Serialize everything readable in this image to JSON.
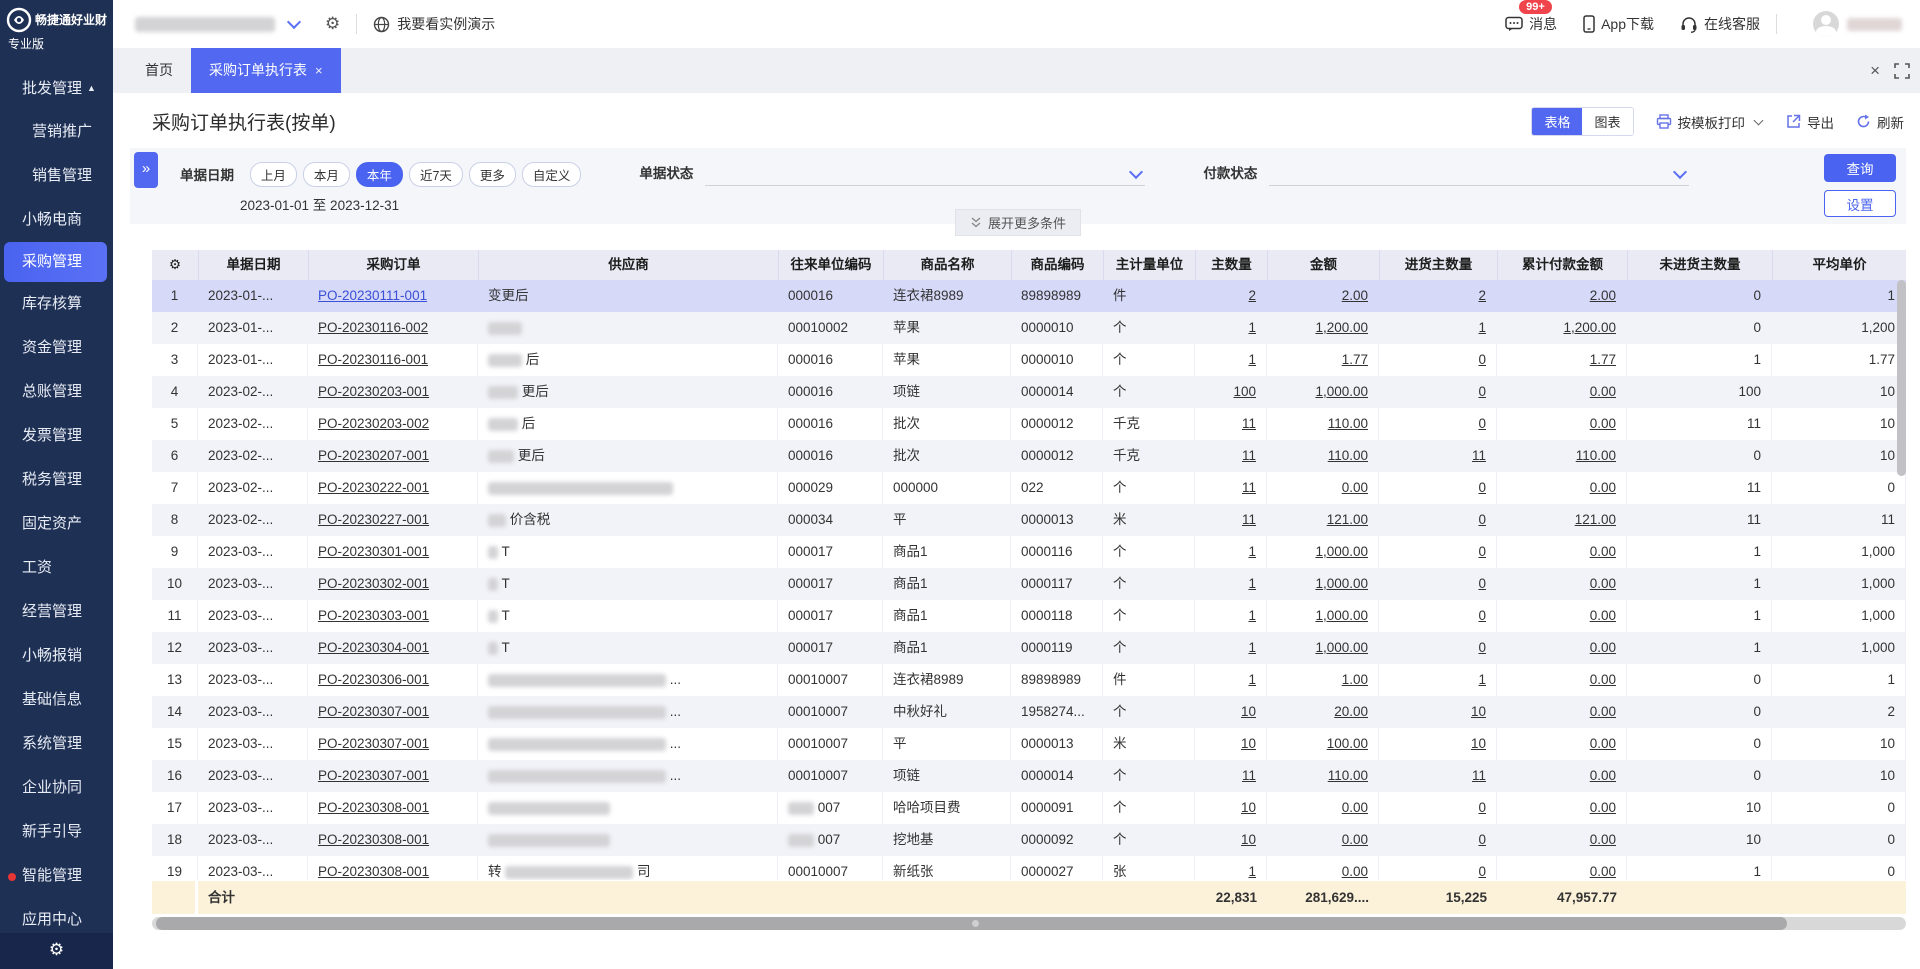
{
  "topbar": {
    "logo_title": "畅捷通好业财",
    "logo_subtitle": "专业版",
    "demo_link": "我要看实例演示",
    "messages_label": "消息",
    "messages_badge": "99+",
    "app_download_label": "App下载",
    "support_label": "在线客服"
  },
  "tabs": {
    "home": "首页",
    "active": "采购订单执行表",
    "close": "×"
  },
  "page": {
    "title": "采购订单执行表(按单)",
    "view_table": "表格",
    "view_chart": "图表",
    "print_label": "按模板打印",
    "export_label": "导出",
    "refresh_label": "刷新"
  },
  "filters": {
    "date_label": "单据日期",
    "date_options": [
      "上月",
      "本月",
      "本年",
      "近7天",
      "更多",
      "自定义"
    ],
    "date_active_index": 2,
    "date_range": "2023-01-01 至 2023-12-31",
    "doc_status_label": "单据状态",
    "pay_status_label": "付款状态",
    "search_button": "查询",
    "settings_button": "设置",
    "expand_more": "展开更多条件",
    "collapse_glyph": "»"
  },
  "sidebar": {
    "items": [
      {
        "label": "批发管理",
        "arrow": true
      },
      {
        "label": "营销推广",
        "indent": true
      },
      {
        "label": "销售管理",
        "indent": true
      },
      {
        "label": "小畅电商"
      },
      {
        "label": "采购管理",
        "active": true
      },
      {
        "label": "库存核算"
      },
      {
        "label": "资金管理"
      },
      {
        "label": "总账管理"
      },
      {
        "label": "发票管理"
      },
      {
        "label": "税务管理"
      },
      {
        "label": "固定资产"
      },
      {
        "label": "工资"
      },
      {
        "label": "经营管理"
      },
      {
        "label": "小畅报销"
      },
      {
        "label": "基础信息"
      },
      {
        "label": "系统管理"
      },
      {
        "label": "企业协同"
      },
      {
        "label": "新手引导"
      },
      {
        "label": "智能管理",
        "dot": true
      },
      {
        "label": "应用中心"
      }
    ]
  },
  "table": {
    "columns": [
      "单据日期",
      "采购订单",
      "供应商",
      "往来单位编码",
      "商品名称",
      "商品编码",
      "主计量单位",
      "主数量",
      "金额",
      "进货主数量",
      "累计付款金额",
      "未进货主数量",
      "平均单价"
    ],
    "rows": [
      {
        "no": 1,
        "date": "2023-01-...",
        "po": "PO-20230111-001",
        "sup": {
          "b": 0,
          "t": "变更后"
        },
        "pc": "000016",
        "prod": "连衣裙8989",
        "code": "89898989",
        "unit": "件",
        "qty": "2",
        "amt": "2.00",
        "inq": "2",
        "paid": "2.00",
        "noq": "0",
        "price": "1",
        "sel": true
      },
      {
        "no": 2,
        "date": "2023-01-...",
        "po": "PO-20230116-002",
        "sup": {
          "b": 34,
          "t": ""
        },
        "pc": "00010002",
        "prod": "苹果",
        "code": "0000010",
        "unit": "个",
        "qty": "1",
        "amt": "1,200.00",
        "inq": "1",
        "paid": "1,200.00",
        "noq": "0",
        "price": "1,200"
      },
      {
        "no": 3,
        "date": "2023-01-...",
        "po": "PO-20230116-001",
        "sup": {
          "b": 34,
          "t": "后"
        },
        "pc": "000016",
        "prod": "苹果",
        "code": "0000010",
        "unit": "个",
        "qty": "1",
        "amt": "1.77",
        "inq": "0",
        "paid": "1.77",
        "noq": "1",
        "price": "1.77"
      },
      {
        "no": 4,
        "date": "2023-02-...",
        "po": "PO-20230203-001",
        "sup": {
          "b": 30,
          "t": "更后"
        },
        "pc": "000016",
        "prod": "项链",
        "code": "0000014",
        "unit": "个",
        "qty": "100",
        "amt": "1,000.00",
        "inq": "0",
        "paid": "0.00",
        "noq": "100",
        "price": "10"
      },
      {
        "no": 5,
        "date": "2023-02-...",
        "po": "PO-20230203-002",
        "sup": {
          "b": 30,
          "t": "后"
        },
        "pc": "000016",
        "prod": "批次",
        "code": "0000012",
        "unit": "千克",
        "qty": "11",
        "amt": "110.00",
        "inq": "0",
        "paid": "0.00",
        "noq": "11",
        "price": "10"
      },
      {
        "no": 6,
        "date": "2023-02-...",
        "po": "PO-20230207-001",
        "sup": {
          "b": 26,
          "t": "更后"
        },
        "pc": "000016",
        "prod": "批次",
        "code": "0000012",
        "unit": "千克",
        "qty": "11",
        "amt": "110.00",
        "inq": "11",
        "paid": "110.00",
        "noq": "0",
        "price": "10"
      },
      {
        "no": 7,
        "date": "2023-02-...",
        "po": "PO-20230222-001",
        "sup": {
          "b": 185,
          "t": ""
        },
        "pc": "000029",
        "prod": "000000",
        "code": "022",
        "unit": "个",
        "qty": "11",
        "amt": "0.00",
        "inq": "0",
        "paid": "0.00",
        "noq": "11",
        "price": "0"
      },
      {
        "no": 8,
        "date": "2023-02-...",
        "po": "PO-20230227-001",
        "sup": {
          "b": 18,
          "t": "价含税"
        },
        "pc": "000034",
        "prod": "平",
        "code": "0000013",
        "unit": "米",
        "qty": "11",
        "amt": "121.00",
        "inq": "0",
        "paid": "121.00",
        "noq": "11",
        "price": "11"
      },
      {
        "no": 9,
        "date": "2023-03-...",
        "po": "PO-20230301-001",
        "sup": {
          "b": 10,
          "t": "T"
        },
        "pc": "000017",
        "prod": "商品1",
        "code": "0000116",
        "unit": "个",
        "qty": "1",
        "amt": "1,000.00",
        "inq": "0",
        "paid": "0.00",
        "noq": "1",
        "price": "1,000"
      },
      {
        "no": 10,
        "date": "2023-03-...",
        "po": "PO-20230302-001",
        "sup": {
          "b": 10,
          "t": "T"
        },
        "pc": "000017",
        "prod": "商品1",
        "code": "0000117",
        "unit": "个",
        "qty": "1",
        "amt": "1,000.00",
        "inq": "0",
        "paid": "0.00",
        "noq": "1",
        "price": "1,000"
      },
      {
        "no": 11,
        "date": "2023-03-...",
        "po": "PO-20230303-001",
        "sup": {
          "b": 10,
          "t": "T"
        },
        "pc": "000017",
        "prod": "商品1",
        "code": "0000118",
        "unit": "个",
        "qty": "1",
        "amt": "1,000.00",
        "inq": "0",
        "paid": "0.00",
        "noq": "1",
        "price": "1,000"
      },
      {
        "no": 12,
        "date": "2023-03-...",
        "po": "PO-20230304-001",
        "sup": {
          "b": 10,
          "t": "T"
        },
        "pc": "000017",
        "prod": "商品1",
        "code": "0000119",
        "unit": "个",
        "qty": "1",
        "amt": "1,000.00",
        "inq": "0",
        "paid": "0.00",
        "noq": "1",
        "price": "1,000"
      },
      {
        "no": 13,
        "date": "2023-03-...",
        "po": "PO-20230306-001",
        "sup": {
          "b": 178,
          "t": "..."
        },
        "pc": "00010007",
        "prod": "连衣裙8989",
        "code": "89898989",
        "unit": "件",
        "qty": "1",
        "amt": "1.00",
        "inq": "1",
        "paid": "0.00",
        "noq": "0",
        "price": "1"
      },
      {
        "no": 14,
        "date": "2023-03-...",
        "po": "PO-20230307-001",
        "sup": {
          "b": 178,
          "t": "..."
        },
        "pc": "00010007",
        "prod": "中秋好礼",
        "code": "1958274...",
        "unit": "个",
        "qty": "10",
        "amt": "20.00",
        "inq": "10",
        "paid": "0.00",
        "noq": "0",
        "price": "2"
      },
      {
        "no": 15,
        "date": "2023-03-...",
        "po": "PO-20230307-001",
        "sup": {
          "b": 178,
          "t": "..."
        },
        "pc": "00010007",
        "prod": "平",
        "code": "0000013",
        "unit": "米",
        "qty": "10",
        "amt": "100.00",
        "inq": "10",
        "paid": "0.00",
        "noq": "0",
        "price": "10"
      },
      {
        "no": 16,
        "date": "2023-03-...",
        "po": "PO-20230307-001",
        "sup": {
          "b": 178,
          "t": "..."
        },
        "pc": "00010007",
        "prod": "项链",
        "code": "0000014",
        "unit": "个",
        "qty": "11",
        "amt": "110.00",
        "inq": "11",
        "paid": "0.00",
        "noq": "0",
        "price": "10"
      },
      {
        "no": 17,
        "date": "2023-03-...",
        "po": "PO-20230308-001",
        "sup": {
          "b": 122,
          "t": ""
        },
        "pc": {
          "b": 26,
          "t": "007"
        },
        "prod": "哈哈项目费",
        "code": "0000091",
        "unit": "个",
        "qty": "10",
        "amt": "0.00",
        "inq": "0",
        "paid": "0.00",
        "noq": "10",
        "price": "0"
      },
      {
        "no": 18,
        "date": "2023-03-...",
        "po": "PO-20230308-001",
        "sup": {
          "b": 122,
          "t": ""
        },
        "pc": {
          "b": 26,
          "t": "007"
        },
        "prod": "挖地基",
        "code": "0000092",
        "unit": "个",
        "qty": "10",
        "amt": "0.00",
        "inq": "0",
        "paid": "0.00",
        "noq": "10",
        "price": "0"
      },
      {
        "no": 19,
        "date": "2023-03-...",
        "po": "PO-20230308-001",
        "sup": {
          "p": "转",
          "b": 128,
          "t": "司"
        },
        "pc": "00010007",
        "prod": "新纸张",
        "code": "0000027",
        "unit": "张",
        "qty": "1",
        "amt": "0.00",
        "inq": "0",
        "paid": "0.00",
        "noq": "1",
        "price": "0"
      }
    ],
    "total": {
      "label": "合计",
      "qty": "22,831",
      "amt": "281,629....",
      "inq": "15,225",
      "paid": "47,957.77"
    }
  }
}
